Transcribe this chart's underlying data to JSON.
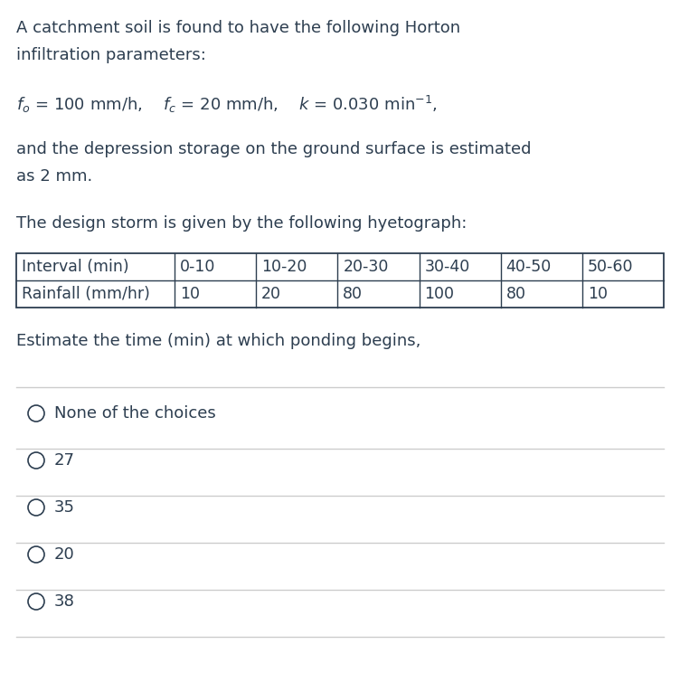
{
  "background_color": "#ffffff",
  "text_color": "#2d3e50",
  "para1_line1": "A catchment soil is found to have the following Horton",
  "para1_line2": "infiltration parameters:",
  "para2_math": "$f_o$ = 100 mm/h,    $f_c$ = 20 mm/h,    $k$ = 0.030 min$^{-1}$,",
  "para3_line1": "and the depression storage on the ground surface is estimated",
  "para3_line2": "as 2 mm.",
  "para4": "The design storm is given by the following hyetograph:",
  "table_headers": [
    "Interval (min)",
    "0-10",
    "10-20",
    "20-30",
    "30-40",
    "40-50",
    "50-60"
  ],
  "table_row2_label": "Rainfall (mm/hr)",
  "table_row2_values": [
    "10",
    "20",
    "80",
    "100",
    "80",
    "10"
  ],
  "question": "Estimate the time (min) at which ponding begins,",
  "choices": [
    "None of the choices",
    "27",
    "35",
    "20",
    "38"
  ],
  "font_size_body": 13.0,
  "font_size_table": 12.5,
  "font_size_choices": 13.0,
  "separator_color": "#cccccc",
  "table_border_color": "#2d3e50"
}
